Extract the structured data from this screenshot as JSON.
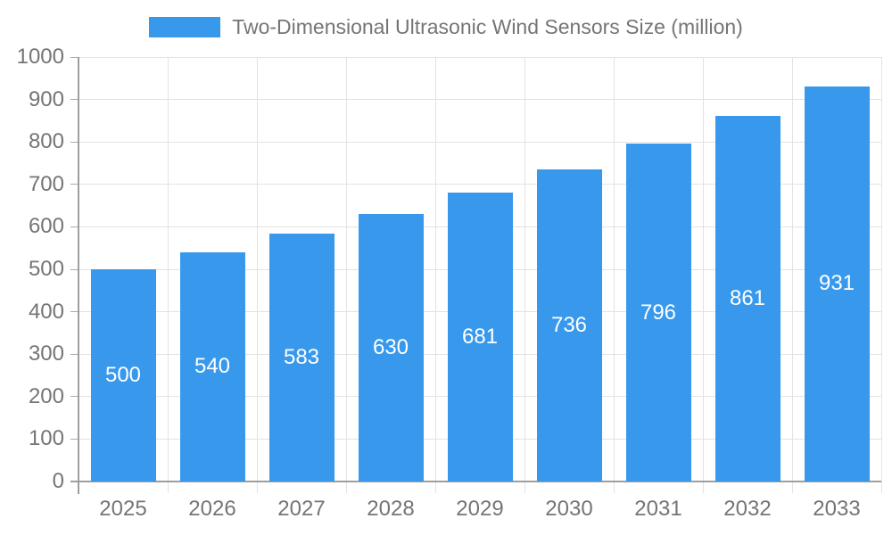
{
  "chart_data": {
    "type": "bar",
    "title": "Two-Dimensional Ultrasonic Wind Sensors Size (million)",
    "categories": [
      "2025",
      "2026",
      "2027",
      "2028",
      "2029",
      "2030",
      "2031",
      "2032",
      "2033"
    ],
    "values": [
      500,
      540,
      583,
      630,
      681,
      736,
      796,
      861,
      931
    ],
    "xlabel": "",
    "ylabel": "",
    "ylim": [
      0,
      1000
    ],
    "ytick_step": 100,
    "grid": true,
    "legend_position": "top",
    "value_labels": "inside-center"
  },
  "legend": {
    "series_label": "Two-Dimensional Ultrasonic Wind Sensors Size (million)"
  },
  "colors": {
    "bar_fill": "#3899ec",
    "bar_value_text": "#ffffff",
    "axis_line": "#9e9e9e",
    "grid_line": "#e3e3e3",
    "tick_line": "#aaaaaa",
    "label_text": "#757575",
    "background": "#ffffff"
  }
}
